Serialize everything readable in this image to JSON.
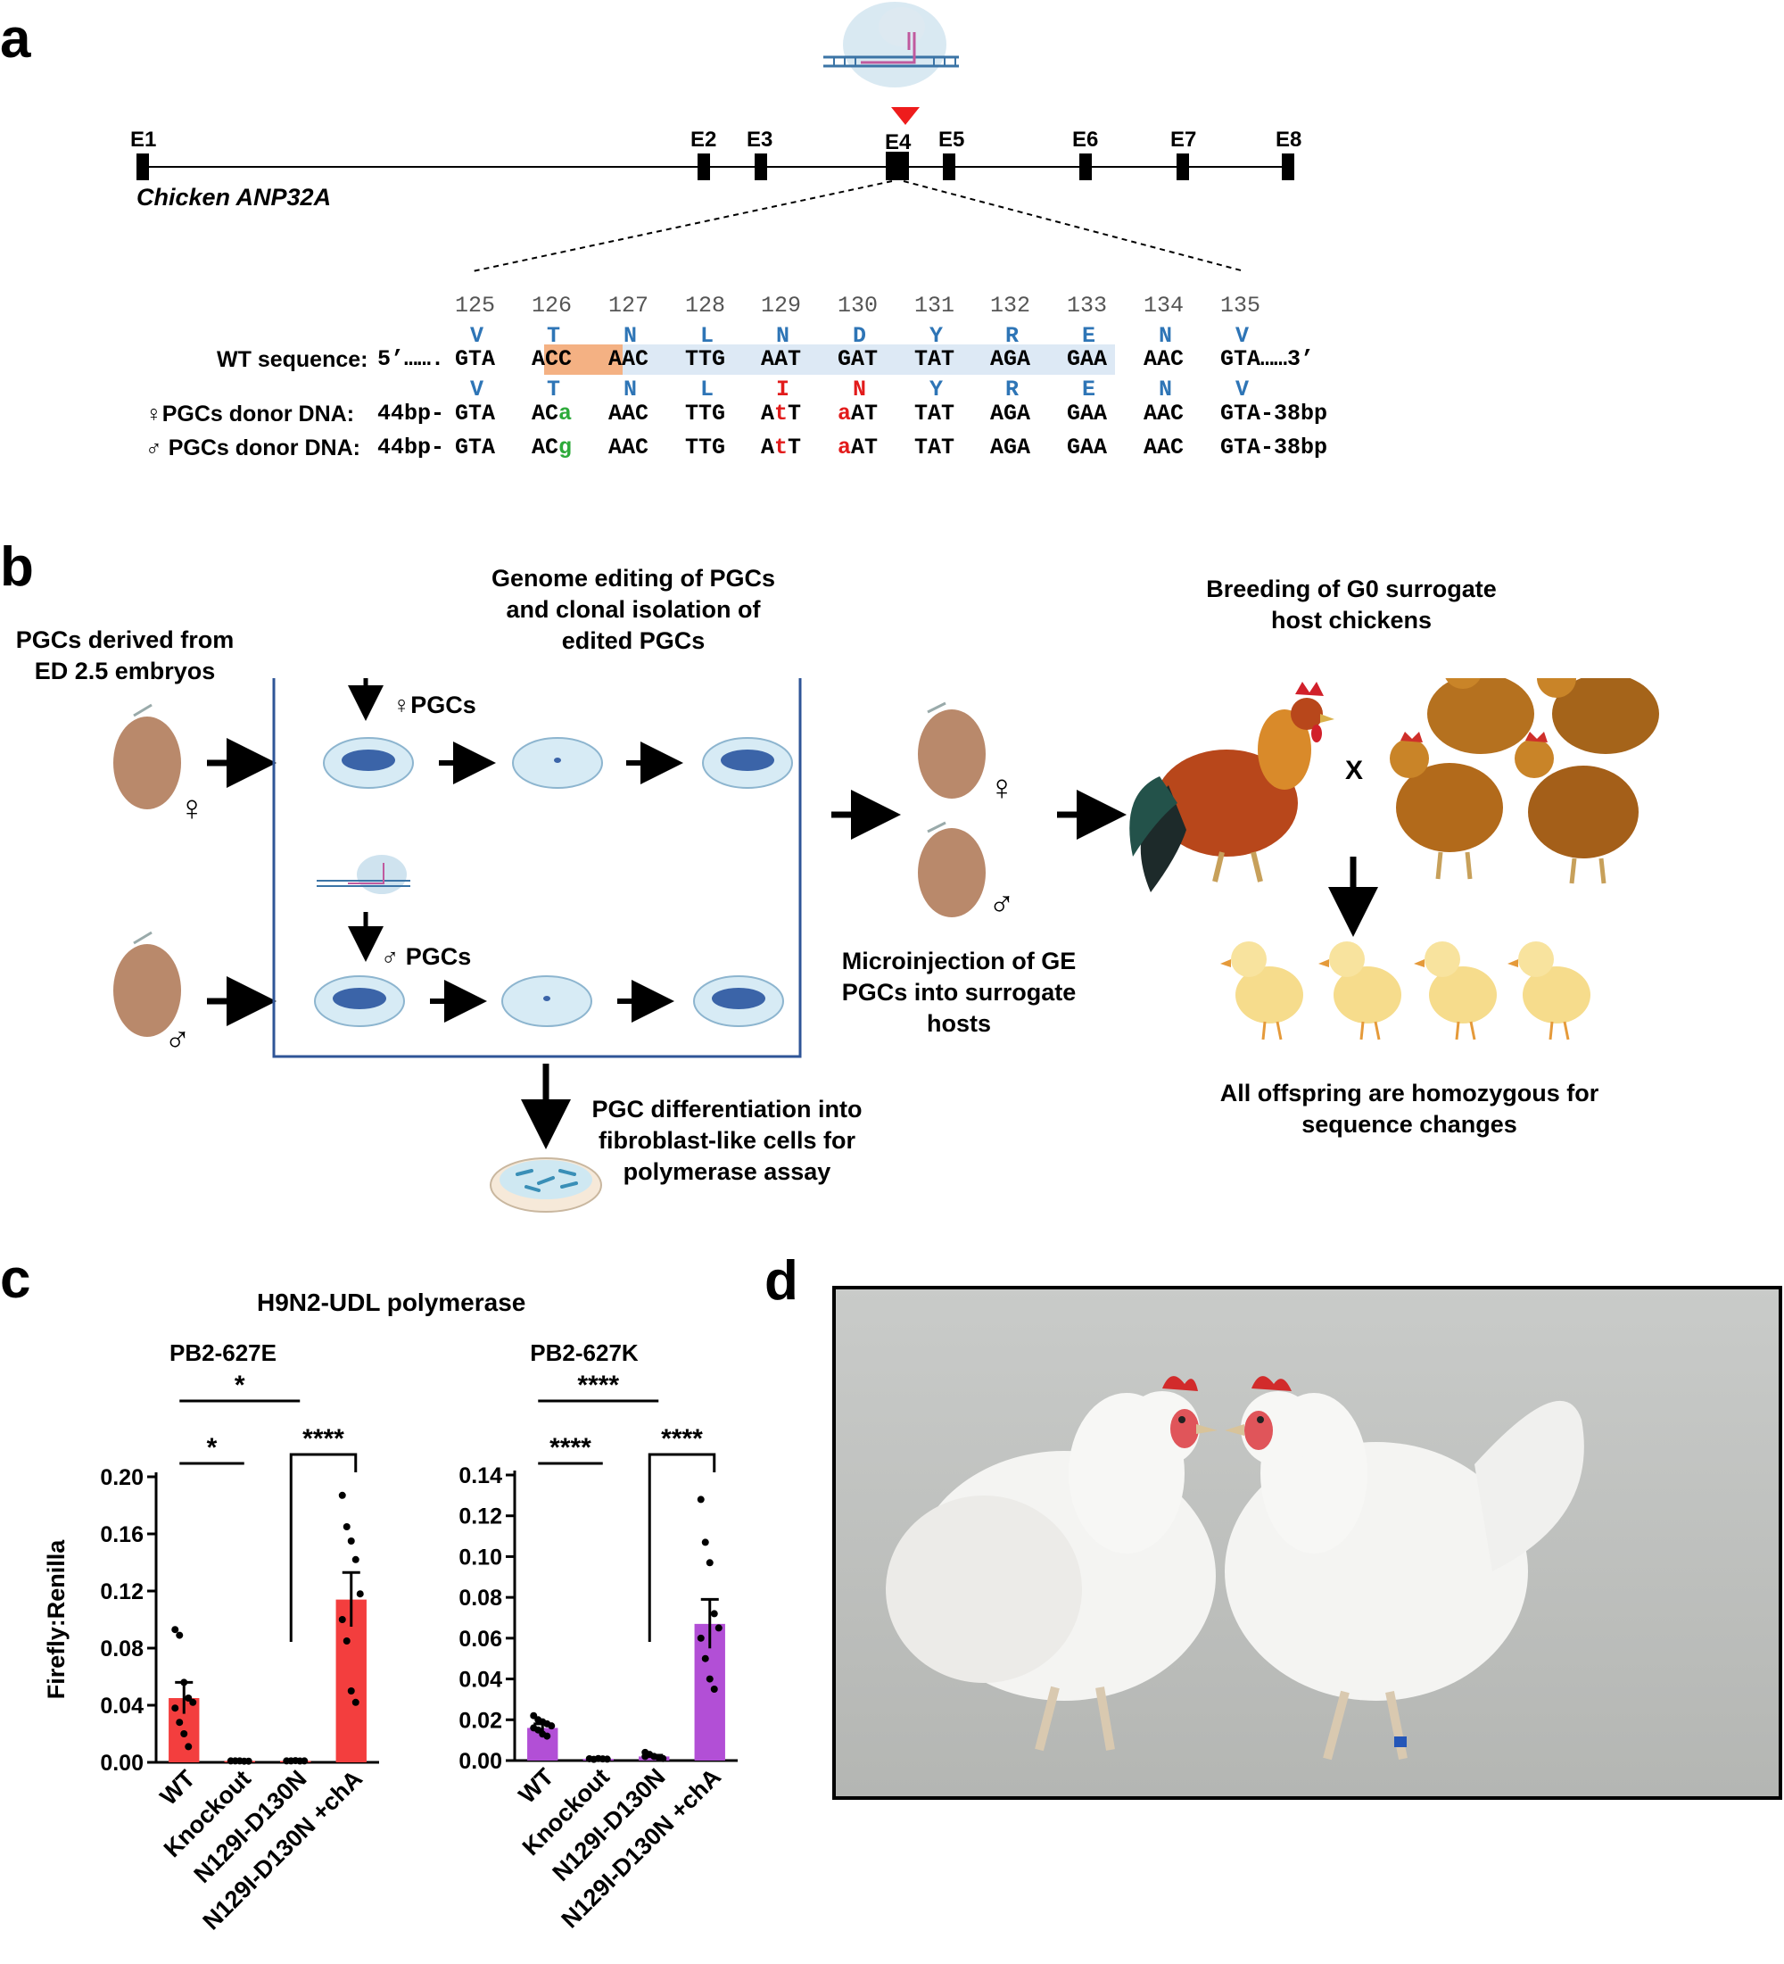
{
  "panel_a": {
    "label": "a",
    "exons": [
      "E1",
      "E2",
      "E3",
      "E4",
      "E5",
      "E6",
      "E7",
      "E8"
    ],
    "gene_name": "Chicken ANP32A",
    "codon_numbers": [
      "125",
      "126",
      "127",
      "128",
      "129",
      "130",
      "131",
      "132",
      "133",
      "134",
      "135"
    ],
    "wt_label": "WT sequence:",
    "wt_aa": [
      "V",
      "T",
      "N",
      "L",
      "N",
      "D",
      "Y",
      "R",
      "E",
      "N",
      "V"
    ],
    "wt_codons": [
      "GTA",
      "ACC",
      "AAC",
      "TTG",
      "AAT",
      "GAT",
      "TAT",
      "AGA",
      "GAA",
      "AAC",
      "GTA"
    ],
    "wt_prefix": "5’……. ",
    "wt_suffix": "……3’",
    "donor_aa": [
      "V",
      "T",
      "N",
      "L",
      "I",
      "N",
      "Y",
      "R",
      "E",
      "N",
      "V"
    ],
    "female_label": "♀PGCs donor DNA:",
    "male_label": "♂ PGCs donor DNA:",
    "donor_prefix": "44bp-",
    "donor_suffix": "-38bp",
    "female_mut": "a",
    "male_mut": "g",
    "mut_129": "t",
    "mut_130": "a"
  },
  "panel_b": {
    "label": "b",
    "pgcs_derived": "PGCs derived from ED 2.5 embryos",
    "box_title": "Genome editing of PGCs and clonal isolation of edited PGCs",
    "female_pgcs": "♀PGCs",
    "male_pgcs": "♂ PGCs",
    "female_symbol": "♀",
    "male_symbol": "♂",
    "differentiation": "PGC differentiation into fibroblast-like cells for polymerase assay",
    "microinjection": "Microinjection of GE PGCs into surrogate hosts",
    "breeding": "Breeding of G0 surrogate host chickens",
    "cross": "X",
    "offspring": "All offspring are homozygous for sequence changes"
  },
  "panel_c": {
    "label": "c",
    "title": "H9N2-UDL polymerase",
    "ylabel": "Firefly:Renilla"
  },
  "panel_d": {
    "label": "d"
  },
  "chart_data": [
    {
      "type": "bar",
      "title": "PB2-627E",
      "ylabel": "Firefly:Renilla",
      "categories": [
        "WT",
        "Knockout",
        "N129I-D130N",
        "N129I-D130N +chA"
      ],
      "values": [
        0.045,
        0.001,
        0.001,
        0.114
      ],
      "errors": [
        0.011,
        0.0005,
        0.0005,
        0.019
      ],
      "points": [
        [
          0.093,
          0.089,
          0.056,
          0.045,
          0.042,
          0.038,
          0.028,
          0.02,
          0.011
        ],
        [
          0.001,
          0.001,
          0.001,
          0.0008,
          0.0008
        ],
        [
          0.001,
          0.001,
          0.0012,
          0.0009,
          0.001
        ],
        [
          0.187,
          0.165,
          0.155,
          0.142,
          0.118,
          0.1,
          0.085,
          0.05,
          0.042
        ]
      ],
      "ylim": [
        0,
        0.2
      ],
      "yticks": [
        "0.00",
        "0.04",
        "0.08",
        "0.12",
        "0.16",
        "0.20"
      ],
      "significance": [
        "*",
        "*",
        "****"
      ],
      "color": "#f33e3e"
    },
    {
      "type": "bar",
      "title": "PB2-627K",
      "ylabel": "",
      "categories": [
        "WT",
        "Knockout",
        "N129I-D130N",
        "N129I-D130N +chA"
      ],
      "values": [
        0.016,
        0.0008,
        0.002,
        0.067
      ],
      "errors": [
        0.002,
        0.0003,
        0.0006,
        0.012
      ],
      "points": [
        [
          0.022,
          0.02,
          0.019,
          0.018,
          0.017,
          0.016,
          0.015,
          0.013,
          0.012
        ],
        [
          0.0009,
          0.0006,
          0.001,
          0.0008,
          0.0007
        ],
        [
          0.004,
          0.003,
          0.002,
          0.0015,
          0.001,
          0.002
        ],
        [
          0.128,
          0.107,
          0.097,
          0.072,
          0.065,
          0.06,
          0.05,
          0.04,
          0.035
        ]
      ],
      "ylim": [
        0,
        0.14
      ],
      "yticks": [
        "0.00",
        "0.02",
        "0.04",
        "0.06",
        "0.08",
        "0.10",
        "0.12",
        "0.14"
      ],
      "significance": [
        "****",
        "****",
        "****"
      ],
      "color": "#b24fd6"
    }
  ]
}
